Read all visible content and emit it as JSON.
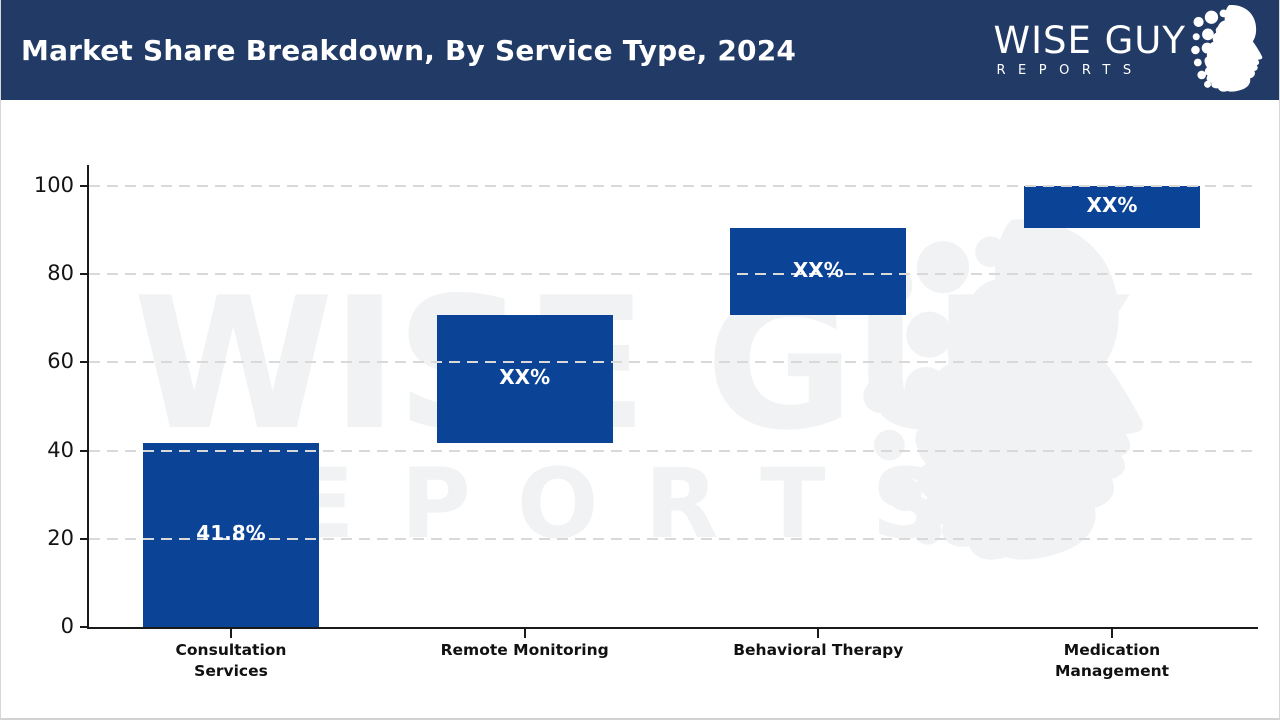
{
  "header": {
    "bg_color": "#223a66",
    "title": "Market Share Breakdown, By Service Type, 2024",
    "logo": {
      "brand_line1": "WISE GUY",
      "brand_line2": "REPORTS",
      "face_icon": "dotted-head-profile"
    }
  },
  "watermark": {
    "line1": "WISE GUY",
    "line2": "REPORTS",
    "face_icon": "dotted-head-profile",
    "color": "#f1f2f4"
  },
  "chart_data": {
    "type": "bar",
    "subtype": "waterfall",
    "title": "Market Share Breakdown, By Service Type, 2024",
    "categories": [
      "Consultation\nServices",
      "Remote Monitoring",
      "Behavioral Therapy",
      "Medication\nManagement"
    ],
    "series": [
      {
        "name": "Market share (%)",
        "segments": [
          {
            "category": "Consultation Services",
            "start": 0,
            "end": 41.8,
            "label": "41.8%"
          },
          {
            "category": "Remote Monitoring",
            "start": 41.8,
            "end": 70.7,
            "label": "XX%"
          },
          {
            "category": "Behavioral Therapy",
            "start": 70.7,
            "end": 90.5,
            "label": "XX%"
          },
          {
            "category": "Medication Management",
            "start": 90.5,
            "end": 100,
            "label": "XX%"
          }
        ]
      }
    ],
    "ylim": [
      0,
      100
    ],
    "yticks": [
      0,
      20,
      40,
      60,
      80,
      100
    ],
    "xlabel": "",
    "ylabel": "",
    "grid": "horizontal-dashed",
    "legend": "none",
    "bar_color": "#0b4396",
    "bar_label_color": "#ffffff"
  }
}
